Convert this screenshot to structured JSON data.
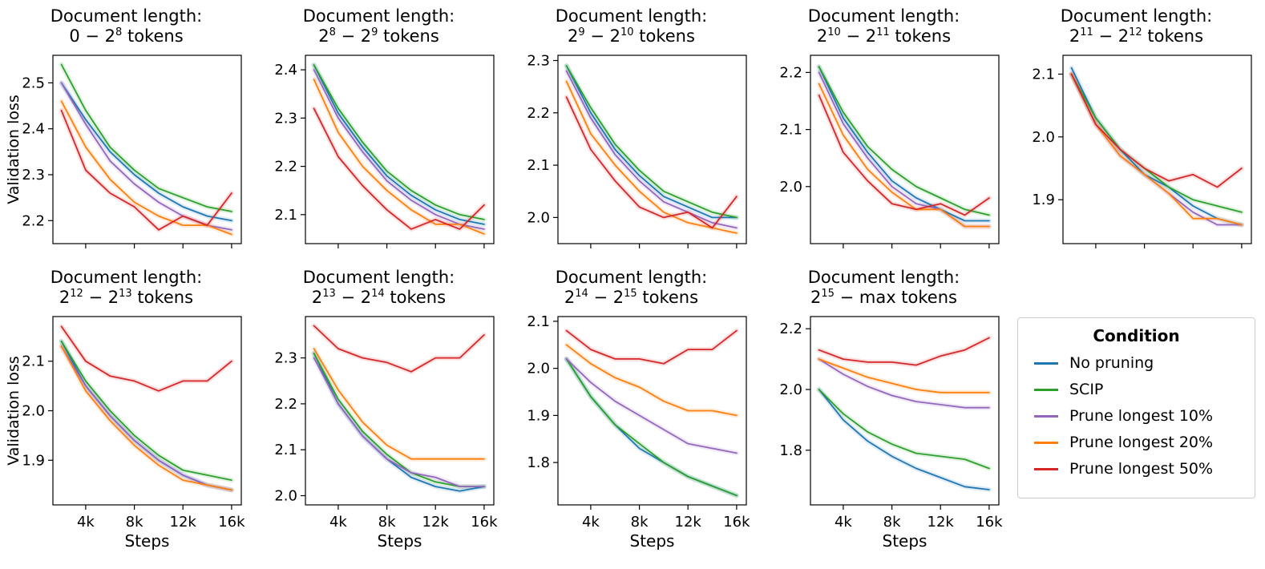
{
  "figure": {
    "ylabel": "Validation loss",
    "xlabel": "Steps",
    "x_tick_values": [
      4000,
      8000,
      12000,
      16000
    ],
    "x_tick_labels": [
      "4k",
      "8k",
      "12k",
      "16k"
    ]
  },
  "legend": {
    "title": "Condition",
    "entries": [
      {
        "label": "No pruning",
        "color": "#1f77b4"
      },
      {
        "label": "SCIP",
        "color": "#2ca02c"
      },
      {
        "label": "Prune longest 10%",
        "color": "#9467bd"
      },
      {
        "label": "Prune longest 20%",
        "color": "#ff7f0e"
      },
      {
        "label": "Prune longest 50%",
        "color": "#d62728"
      }
    ]
  },
  "chart_data": [
    {
      "type": "line",
      "title_line1": "Document length:",
      "title_line2": "0 − 2^8 tokens",
      "ylabel": "Validation loss",
      "xlabel": "",
      "show_xticklabels": false,
      "x": [
        2000,
        4000,
        6000,
        8000,
        10000,
        12000,
        14000,
        16000
      ],
      "xlim": [
        1300,
        16800
      ],
      "ylim": [
        2.15,
        2.56
      ],
      "yticks": [
        2.2,
        2.3,
        2.4,
        2.5
      ],
      "series": [
        {
          "name": "No pruning",
          "values": [
            2.5,
            2.42,
            2.35,
            2.3,
            2.26,
            2.23,
            2.21,
            2.2
          ]
        },
        {
          "name": "SCIP",
          "values": [
            2.54,
            2.44,
            2.36,
            2.31,
            2.27,
            2.25,
            2.23,
            2.22
          ]
        },
        {
          "name": "Prune longest 10%",
          "values": [
            2.5,
            2.41,
            2.33,
            2.28,
            2.24,
            2.21,
            2.19,
            2.18
          ]
        },
        {
          "name": "Prune longest 20%",
          "values": [
            2.46,
            2.36,
            2.29,
            2.24,
            2.21,
            2.19,
            2.19,
            2.17
          ]
        },
        {
          "name": "Prune longest 50%",
          "values": [
            2.44,
            2.31,
            2.26,
            2.23,
            2.18,
            2.21,
            2.19,
            2.26
          ]
        }
      ]
    },
    {
      "type": "line",
      "title_line1": "Document length:",
      "title_line2": "2^8 − 2^9 tokens",
      "ylabel": "",
      "xlabel": "",
      "show_xticklabels": false,
      "x": [
        2000,
        4000,
        6000,
        8000,
        10000,
        12000,
        14000,
        16000
      ],
      "xlim": [
        1300,
        16800
      ],
      "ylim": [
        2.04,
        2.43
      ],
      "yticks": [
        2.1,
        2.2,
        2.3,
        2.4
      ],
      "series": [
        {
          "name": "No pruning",
          "values": [
            2.41,
            2.31,
            2.24,
            2.18,
            2.14,
            2.11,
            2.09,
            2.08
          ]
        },
        {
          "name": "SCIP",
          "values": [
            2.41,
            2.32,
            2.25,
            2.19,
            2.15,
            2.12,
            2.1,
            2.09
          ]
        },
        {
          "name": "Prune longest 10%",
          "values": [
            2.4,
            2.3,
            2.23,
            2.17,
            2.13,
            2.1,
            2.08,
            2.07
          ]
        },
        {
          "name": "Prune longest 20%",
          "values": [
            2.38,
            2.27,
            2.2,
            2.15,
            2.11,
            2.08,
            2.08,
            2.06
          ]
        },
        {
          "name": "Prune longest 50%",
          "values": [
            2.32,
            2.22,
            2.16,
            2.11,
            2.07,
            2.09,
            2.07,
            2.12
          ]
        }
      ]
    },
    {
      "type": "line",
      "title_line1": "Document length:",
      "title_line2": "2^9 − 2^10 tokens",
      "ylabel": "",
      "xlabel": "",
      "show_xticklabels": false,
      "x": [
        2000,
        4000,
        6000,
        8000,
        10000,
        12000,
        14000,
        16000
      ],
      "xlim": [
        1300,
        16800
      ],
      "ylim": [
        1.95,
        2.31
      ],
      "yticks": [
        2.0,
        2.1,
        2.2,
        2.3
      ],
      "series": [
        {
          "name": "No pruning",
          "values": [
            2.29,
            2.2,
            2.13,
            2.08,
            2.04,
            2.02,
            2.0,
            2.0
          ]
        },
        {
          "name": "SCIP",
          "values": [
            2.29,
            2.21,
            2.14,
            2.09,
            2.05,
            2.03,
            2.01,
            2.0
          ]
        },
        {
          "name": "Prune longest 10%",
          "values": [
            2.28,
            2.19,
            2.12,
            2.07,
            2.03,
            2.01,
            1.99,
            1.98
          ]
        },
        {
          "name": "Prune longest 20%",
          "values": [
            2.26,
            2.16,
            2.1,
            2.05,
            2.01,
            1.99,
            1.98,
            1.97
          ]
        },
        {
          "name": "Prune longest 50%",
          "values": [
            2.23,
            2.13,
            2.07,
            2.02,
            2.0,
            2.01,
            1.98,
            2.04
          ]
        }
      ]
    },
    {
      "type": "line",
      "title_line1": "Document length:",
      "title_line2": "2^10 − 2^11 tokens",
      "ylabel": "",
      "xlabel": "",
      "show_xticklabels": false,
      "x": [
        2000,
        4000,
        6000,
        8000,
        10000,
        12000,
        14000,
        16000
      ],
      "xlim": [
        1300,
        16800
      ],
      "ylim": [
        1.9,
        2.23
      ],
      "yticks": [
        2.0,
        2.1,
        2.2
      ],
      "series": [
        {
          "name": "No pruning",
          "values": [
            2.21,
            2.12,
            2.06,
            2.01,
            1.98,
            1.96,
            1.94,
            1.94
          ]
        },
        {
          "name": "SCIP",
          "values": [
            2.21,
            2.13,
            2.07,
            2.03,
            2.0,
            1.98,
            1.96,
            1.95
          ]
        },
        {
          "name": "Prune longest 10%",
          "values": [
            2.2,
            2.11,
            2.05,
            2.0,
            1.97,
            1.96,
            1.93,
            1.93
          ]
        },
        {
          "name": "Prune longest 20%",
          "values": [
            2.18,
            2.09,
            2.03,
            1.99,
            1.96,
            1.96,
            1.93,
            1.93
          ]
        },
        {
          "name": "Prune longest 50%",
          "values": [
            2.16,
            2.06,
            2.01,
            1.97,
            1.96,
            1.97,
            1.95,
            1.98
          ]
        }
      ]
    },
    {
      "type": "line",
      "title_line1": "Document length:",
      "title_line2": "2^11 − 2^12 tokens",
      "ylabel": "",
      "xlabel": "",
      "show_xticklabels": false,
      "x": [
        2000,
        4000,
        6000,
        8000,
        10000,
        12000,
        14000,
        16000
      ],
      "xlim": [
        1300,
        16800
      ],
      "ylim": [
        1.83,
        2.13
      ],
      "yticks": [
        1.9,
        2.0,
        2.1
      ],
      "series": [
        {
          "name": "No pruning",
          "values": [
            2.11,
            2.03,
            1.98,
            1.94,
            1.92,
            1.89,
            1.87,
            1.86
          ]
        },
        {
          "name": "SCIP",
          "values": [
            2.1,
            2.03,
            1.98,
            1.95,
            1.92,
            1.9,
            1.89,
            1.88
          ]
        },
        {
          "name": "Prune longest 10%",
          "values": [
            2.1,
            2.02,
            1.97,
            1.94,
            1.91,
            1.88,
            1.86,
            1.86
          ]
        },
        {
          "name": "Prune longest 20%",
          "values": [
            2.1,
            2.02,
            1.97,
            1.94,
            1.91,
            1.87,
            1.87,
            1.86
          ]
        },
        {
          "name": "Prune longest 50%",
          "values": [
            2.1,
            2.02,
            1.98,
            1.95,
            1.93,
            1.94,
            1.92,
            1.95
          ]
        }
      ]
    },
    {
      "type": "line",
      "title_line1": "Document length:",
      "title_line2": "2^12 − 2^13 tokens",
      "ylabel": "Validation loss",
      "xlabel": "Steps",
      "show_xticklabels": true,
      "x": [
        2000,
        4000,
        6000,
        8000,
        10000,
        12000,
        14000,
        16000
      ],
      "xlim": [
        1300,
        16800
      ],
      "ylim": [
        1.81,
        2.19
      ],
      "yticks": [
        1.9,
        2.0,
        2.1
      ],
      "series": [
        {
          "name": "No pruning",
          "values": [
            2.14,
            2.05,
            1.99,
            1.94,
            1.9,
            1.87,
            1.85,
            1.84
          ]
        },
        {
          "name": "SCIP",
          "values": [
            2.14,
            2.06,
            2.0,
            1.95,
            1.91,
            1.88,
            1.87,
            1.86
          ]
        },
        {
          "name": "Prune longest 10%",
          "values": [
            2.13,
            2.05,
            1.99,
            1.94,
            1.9,
            1.87,
            1.85,
            1.84
          ]
        },
        {
          "name": "Prune longest 20%",
          "values": [
            2.13,
            2.04,
            1.98,
            1.93,
            1.89,
            1.86,
            1.85,
            1.84
          ]
        },
        {
          "name": "Prune longest 50%",
          "values": [
            2.17,
            2.1,
            2.07,
            2.06,
            2.04,
            2.06,
            2.06,
            2.1
          ]
        }
      ]
    },
    {
      "type": "line",
      "title_line1": "Document length:",
      "title_line2": "2^13 − 2^14 tokens",
      "ylabel": "",
      "xlabel": "Steps",
      "show_xticklabels": true,
      "x": [
        2000,
        4000,
        6000,
        8000,
        10000,
        12000,
        14000,
        16000
      ],
      "xlim": [
        1300,
        16800
      ],
      "ylim": [
        1.98,
        2.39
      ],
      "yticks": [
        2.0,
        2.1,
        2.2,
        2.3
      ],
      "series": [
        {
          "name": "No pruning",
          "values": [
            2.31,
            2.2,
            2.13,
            2.08,
            2.04,
            2.02,
            2.01,
            2.02
          ]
        },
        {
          "name": "SCIP",
          "values": [
            2.31,
            2.21,
            2.14,
            2.09,
            2.05,
            2.03,
            2.02,
            2.02
          ]
        },
        {
          "name": "Prune longest 10%",
          "values": [
            2.3,
            2.2,
            2.13,
            2.08,
            2.05,
            2.04,
            2.02,
            2.02
          ]
        },
        {
          "name": "Prune longest 20%",
          "values": [
            2.32,
            2.23,
            2.16,
            2.11,
            2.08,
            2.08,
            2.08,
            2.08
          ]
        },
        {
          "name": "Prune longest 50%",
          "values": [
            2.37,
            2.32,
            2.3,
            2.29,
            2.27,
            2.3,
            2.3,
            2.35
          ]
        }
      ]
    },
    {
      "type": "line",
      "title_line1": "Document length:",
      "title_line2": "2^14 − 2^15 tokens",
      "ylabel": "",
      "xlabel": "Steps",
      "show_xticklabels": true,
      "x": [
        2000,
        4000,
        6000,
        8000,
        10000,
        12000,
        14000,
        16000
      ],
      "xlim": [
        1300,
        16800
      ],
      "ylim": [
        1.71,
        2.11
      ],
      "yticks": [
        1.8,
        1.9,
        2.0,
        2.1
      ],
      "series": [
        {
          "name": "No pruning",
          "values": [
            2.02,
            1.94,
            1.88,
            1.83,
            1.8,
            1.77,
            1.75,
            1.73
          ]
        },
        {
          "name": "SCIP",
          "values": [
            2.02,
            1.94,
            1.88,
            1.84,
            1.8,
            1.77,
            1.75,
            1.73
          ]
        },
        {
          "name": "Prune longest 10%",
          "values": [
            2.02,
            1.97,
            1.93,
            1.9,
            1.87,
            1.84,
            1.83,
            1.82
          ]
        },
        {
          "name": "Prune longest 20%",
          "values": [
            2.05,
            2.01,
            1.98,
            1.96,
            1.93,
            1.91,
            1.91,
            1.9
          ]
        },
        {
          "name": "Prune longest 50%",
          "values": [
            2.08,
            2.04,
            2.02,
            2.02,
            2.01,
            2.04,
            2.04,
            2.08
          ]
        }
      ]
    },
    {
      "type": "line",
      "title_line1": "Document length:",
      "title_line2": "2^15 − max tokens",
      "ylabel": "",
      "xlabel": "Steps",
      "show_xticklabels": true,
      "x": [
        2000,
        4000,
        6000,
        8000,
        10000,
        12000,
        14000,
        16000
      ],
      "xlim": [
        1300,
        16800
      ],
      "ylim": [
        1.62,
        2.24
      ],
      "yticks": [
        1.8,
        2.0,
        2.2
      ],
      "series": [
        {
          "name": "No pruning",
          "values": [
            2.0,
            1.9,
            1.83,
            1.78,
            1.74,
            1.71,
            1.68,
            1.67
          ]
        },
        {
          "name": "SCIP",
          "values": [
            2.0,
            1.92,
            1.86,
            1.82,
            1.79,
            1.78,
            1.77,
            1.74
          ]
        },
        {
          "name": "Prune longest 10%",
          "values": [
            2.1,
            2.05,
            2.01,
            1.98,
            1.96,
            1.95,
            1.94,
            1.94
          ]
        },
        {
          "name": "Prune longest 20%",
          "values": [
            2.1,
            2.07,
            2.04,
            2.02,
            2.0,
            1.99,
            1.99,
            1.99
          ]
        },
        {
          "name": "Prune longest 50%",
          "values": [
            2.13,
            2.1,
            2.09,
            2.09,
            2.08,
            2.11,
            2.13,
            2.17
          ]
        }
      ]
    }
  ]
}
